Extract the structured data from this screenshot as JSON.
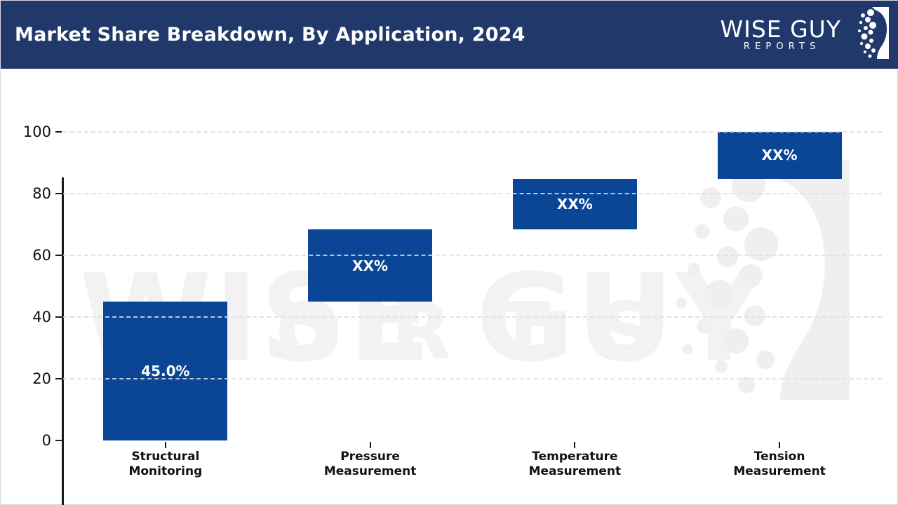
{
  "header": {
    "title": "Market Share Breakdown, By Application, 2024",
    "logo": {
      "line1": "WISE GUY",
      "line2": "REPORTS"
    }
  },
  "watermark": {
    "line1": "WISE GUY",
    "line2": "PORTS"
  },
  "chart_data": {
    "type": "bar",
    "subtype": "waterfall",
    "title": "Market Share Breakdown, By Application, 2024",
    "xlabel": "",
    "ylabel": "",
    "categories": [
      "Structural Monitoring",
      "Pressure Measurement",
      "Temperature Measurement",
      "Tension Measurement"
    ],
    "category_label_lines": [
      [
        "Structural",
        "Monitoring"
      ],
      [
        "Pressure",
        "Measurement"
      ],
      [
        "Temperature",
        "Measurement"
      ],
      [
        "Tension",
        "Measurement"
      ]
    ],
    "segments": [
      {
        "label": "45.0%",
        "start": 0,
        "end": 45.0,
        "value": 45.0
      },
      {
        "label": "XX%",
        "start": 45.0,
        "end": 68.4,
        "value": 23.4
      },
      {
        "label": "XX%",
        "start": 68.4,
        "end": 84.8,
        "value": 16.4
      },
      {
        "label": "XX%",
        "start": 84.8,
        "end": 100.0,
        "value": 15.2
      }
    ],
    "yticks": [
      0,
      20,
      40,
      60,
      80,
      100
    ],
    "ylim": [
      0,
      107
    ],
    "grid": "horizontal-dashed",
    "legend": "none",
    "bar_color": "#0B4596",
    "bar_label_color": "#FFFFFF",
    "header_bg_color": "#21396A",
    "axis_color": "#1a1a1a",
    "grid_color": "#dedede"
  }
}
